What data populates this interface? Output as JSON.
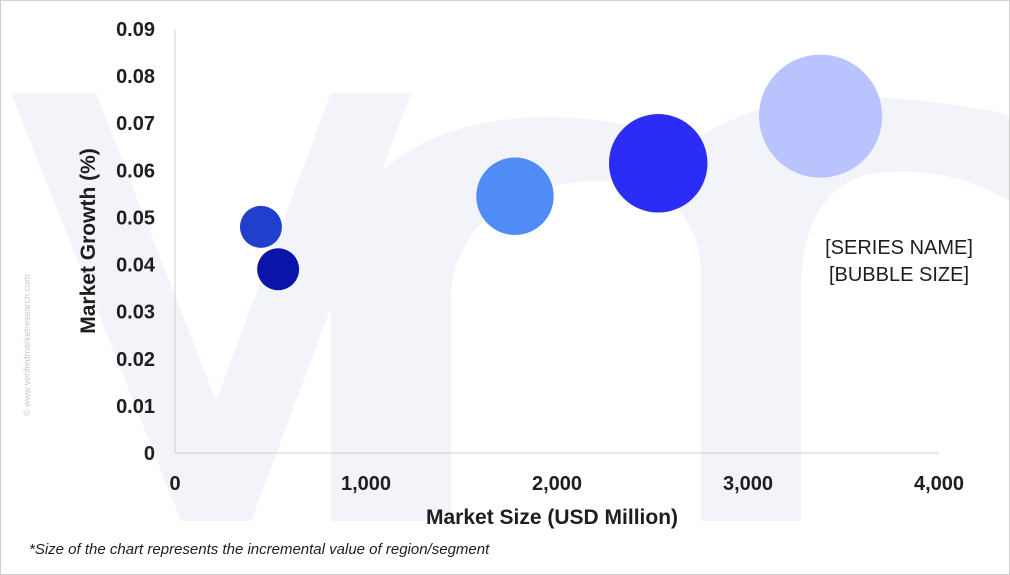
{
  "chart_data": {
    "type": "scatter",
    "xlabel": "Market Size (USD Million)",
    "ylabel": "Market Growth (%)",
    "xlim": [
      0,
      4000
    ],
    "ylim": [
      0,
      0.09
    ],
    "x_ticks": [
      "0",
      "1,000",
      "2,000",
      "3,000",
      "4,000"
    ],
    "x_tick_values": [
      0,
      1000,
      2000,
      3000,
      4000
    ],
    "y_ticks": [
      "0",
      "0.01",
      "0.02",
      "0.03",
      "0.04",
      "0.05",
      "0.06",
      "0.07",
      "0.08",
      "0.09"
    ],
    "y_tick_values": [
      0,
      0.01,
      0.02,
      0.03,
      0.04,
      0.05,
      0.06,
      0.07,
      0.08,
      0.09
    ],
    "grid": false,
    "legend_placement": "right",
    "legend_lines": [
      "[SERIES NAME]",
      "[BUBBLE SIZE]"
    ],
    "points": [
      {
        "x": 450,
        "y": 0.048,
        "size": 1,
        "color": "#1f3fcc"
      },
      {
        "x": 540,
        "y": 0.039,
        "size": 1,
        "color": "#0a14a8"
      },
      {
        "x": 1780,
        "y": 0.0545,
        "size": 3.4,
        "color": "#4f8cf5"
      },
      {
        "x": 2530,
        "y": 0.0615,
        "size": 5.5,
        "color": "#2b2cf5"
      },
      {
        "x": 3380,
        "y": 0.0715,
        "size": 8.6,
        "color": "#b9c3fd"
      }
    ]
  },
  "footnote": "*Size of the chart represents the incremental value of region/segment",
  "watermark_text": "© www.verifiedmarketresearch.com",
  "colors": {
    "axis": "#d0d0d0",
    "watermark": "#f3f3fa"
  }
}
